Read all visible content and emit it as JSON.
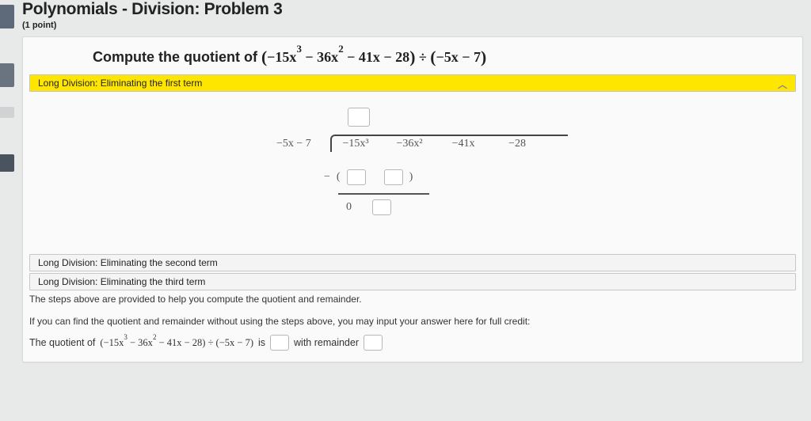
{
  "header": {
    "title": "Polynomials - Division: Problem 3",
    "points": "(1 point)"
  },
  "prompt": {
    "lead": "Compute the quotient of ",
    "expr_dividend_terms": [
      "−15x",
      "3",
      " − 36x",
      "2",
      " − 41x − 28"
    ],
    "expr_divisor": "−5x − 7"
  },
  "accordion": {
    "step1": "Long Division: Eliminating the first term",
    "step2": "Long Division: Eliminating the second term",
    "step3": "Long Division: Eliminating the third term"
  },
  "division": {
    "divisor": "−5x − 7",
    "dividend": [
      "−15x³",
      "−36x²",
      "−41x",
      "−28"
    ],
    "sub_prefix": "−",
    "row3_zero": "0"
  },
  "notes": {
    "help": "The steps above are provided to help you compute the quotient and remainder.",
    "help2": "If you can find the quotient and remainder without using the steps above, you may input your answer here for full credit:",
    "final_lead": "The quotient of ",
    "final_mid": " is ",
    "final_tail": " with remainder "
  },
  "colors": {
    "highlight": "#ffe600",
    "card_bg": "#fafafa",
    "page_bg": "#e8eaea"
  }
}
